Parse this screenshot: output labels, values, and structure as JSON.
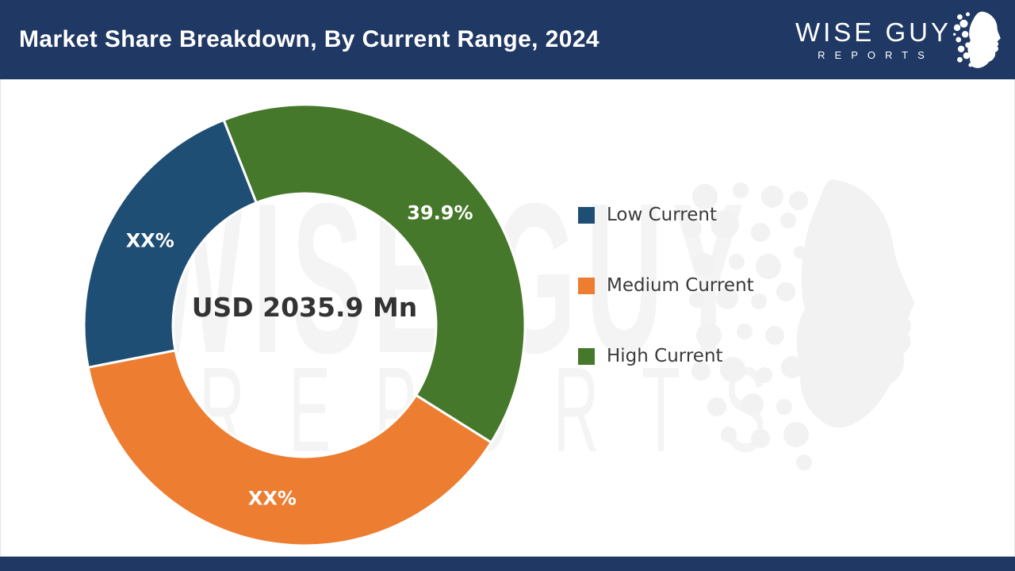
{
  "header": {
    "title": "Market Share Breakdown, By Current Range, 2024",
    "logo": {
      "wordmark": "WISE GUY",
      "subtitle": "REPORTS"
    }
  },
  "watermark": {
    "line1": "WISE GUY",
    "line2": "REPORTS"
  },
  "colors": {
    "header_bg": "#203864",
    "footer_bg": "#203864",
    "title_text": "#ffffff",
    "center_text": "#333333",
    "slice_gap": "#ffffff",
    "watermark": "#f4f4f5"
  },
  "chart_data": {
    "type": "donut",
    "title": "Market Share Breakdown, By Current Range, 2024",
    "center_label": "USD 2035.9 Mn",
    "start_angle_deg": -21.5,
    "slices": [
      {
        "name": "High Current",
        "label": "39.9%",
        "value": 39.9,
        "color": "#45782a"
      },
      {
        "name": "Medium Current",
        "label": "XX%",
        "value": 38.0,
        "color": "#ed7d31"
      },
      {
        "name": "Low Current",
        "label": "XX%",
        "value": 22.1,
        "color": "#1f4e74"
      }
    ],
    "legend": [
      {
        "label": "Low Current",
        "color": "#1f4e74"
      },
      {
        "label": "Medium Current",
        "color": "#ed7d31"
      },
      {
        "label": "High Current",
        "color": "#45782a"
      }
    ],
    "legend_position": "right"
  }
}
